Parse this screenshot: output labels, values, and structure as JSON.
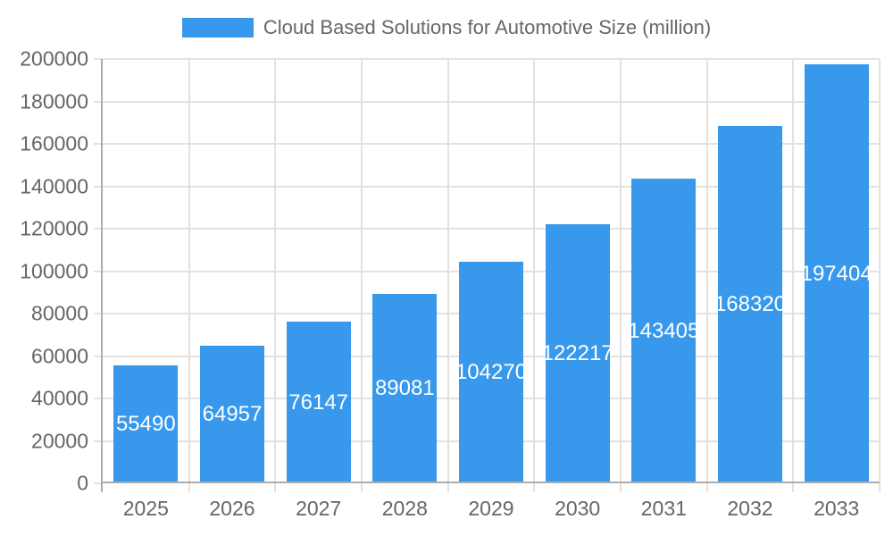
{
  "chart_data": {
    "type": "bar",
    "title": "Cloud Based Solutions for Automotive Size (million)",
    "legend": {
      "position": "top",
      "entries": [
        "Cloud Based Solutions for Automotive Size (million)"
      ]
    },
    "categories": [
      "2025",
      "2026",
      "2027",
      "2028",
      "2029",
      "2030",
      "2031",
      "2032",
      "2033"
    ],
    "series": [
      {
        "name": "Cloud Based Solutions for Automotive Size (million)",
        "values": [
          55490,
          64957,
          76147,
          89081,
          104270,
          122217,
          143405,
          168320,
          197404
        ]
      }
    ],
    "value_labels": [
      "55490",
      "64957",
      "76147",
      "89081",
      "104270",
      "122217",
      "143405",
      "168320",
      "197404"
    ],
    "xlabel": "",
    "ylabel": "",
    "ylim": [
      0,
      200000
    ],
    "y_tick_step": 20000,
    "y_tick_labels": [
      "0",
      "20000",
      "40000",
      "60000",
      "80000",
      "100000",
      "120000",
      "140000",
      "160000",
      "180000",
      "200000"
    ],
    "grid": true,
    "colors": {
      "bar": "#3898EC",
      "value_label_text": "#FFFFFF",
      "axis_text": "#666666",
      "gridline": "#E2E2E2",
      "axis_line": "#ACACAC",
      "background": "#FFFFFF"
    }
  }
}
